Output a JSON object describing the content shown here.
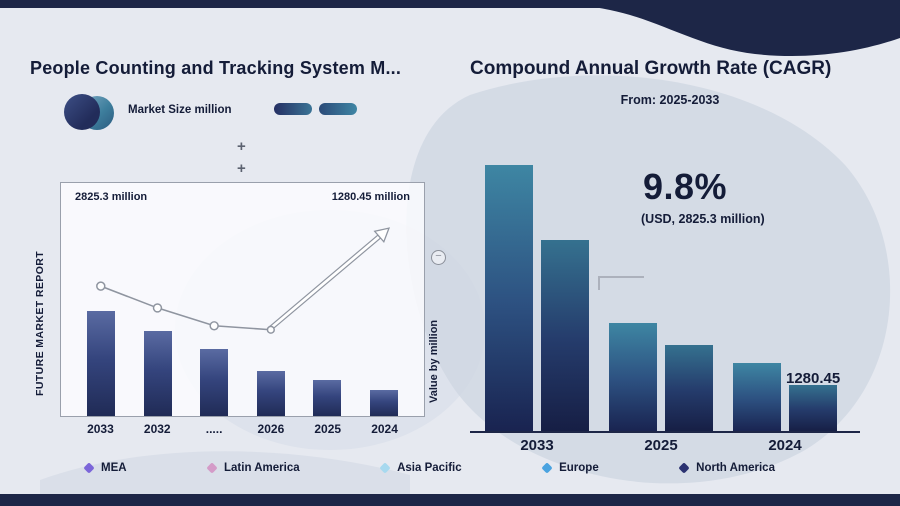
{
  "colors": {
    "background": "#e6e9f0",
    "navy": "#1d2647",
    "teal": "#3e7f9d",
    "wave": "#ccd4e2",
    "text": "#141c38"
  },
  "decorations": {
    "plus": "+",
    "minus": "−"
  },
  "branding": {
    "side_label": "FUTURE MARKET REPORT"
  },
  "chart_data": [
    {
      "id": "market-size-by-year",
      "type": "bar",
      "title": "People Counting and Tracking System M...",
      "legend": [
        "Market Size million"
      ],
      "legend_position": "top-left",
      "categories": [
        "2033",
        "2032",
        ".....",
        "2026",
        "2025",
        "2024"
      ],
      "rel_heights": [
        105,
        85,
        67,
        45,
        36,
        26
      ],
      "annotations": {
        "left": "2825.3 million",
        "right": "1280.45 million"
      },
      "known_values_million": {
        "2033": 2825.3,
        "2024": 1280.45
      },
      "overlay": "declining marker line with upward outline arrow",
      "grid": false
    },
    {
      "id": "cagr-highlight",
      "type": "bar",
      "title": "Compound Annual Growth Rate (CAGR)",
      "subtitle": "From: 2025-2033",
      "ylabel": "Value by million",
      "groups": [
        {
          "year": "2033",
          "rel_heights": [
            267,
            192
          ]
        },
        {
          "year": "2025",
          "rel_heights": [
            109,
            87
          ]
        },
        {
          "year": "2024",
          "rel_heights": [
            69,
            47
          ]
        }
      ],
      "annotations": {
        "cagr": "9.8%",
        "note": "(USD, 2825.3 million)",
        "callout": "1280.45"
      },
      "known_values_million": {
        "2033": 2825.3,
        "2024": 1280.45
      },
      "grid": false
    }
  ],
  "bottom_legend": [
    {
      "label": "MEA",
      "color": "#7c66d9"
    },
    {
      "label": "Latin America",
      "color": "#d49bc8"
    },
    {
      "label": "Asia Pacific",
      "color": "#a7d9ef"
    },
    {
      "label": "Europe",
      "color": "#4aa3e0"
    },
    {
      "label": "North America",
      "color": "#2b3271"
    }
  ]
}
